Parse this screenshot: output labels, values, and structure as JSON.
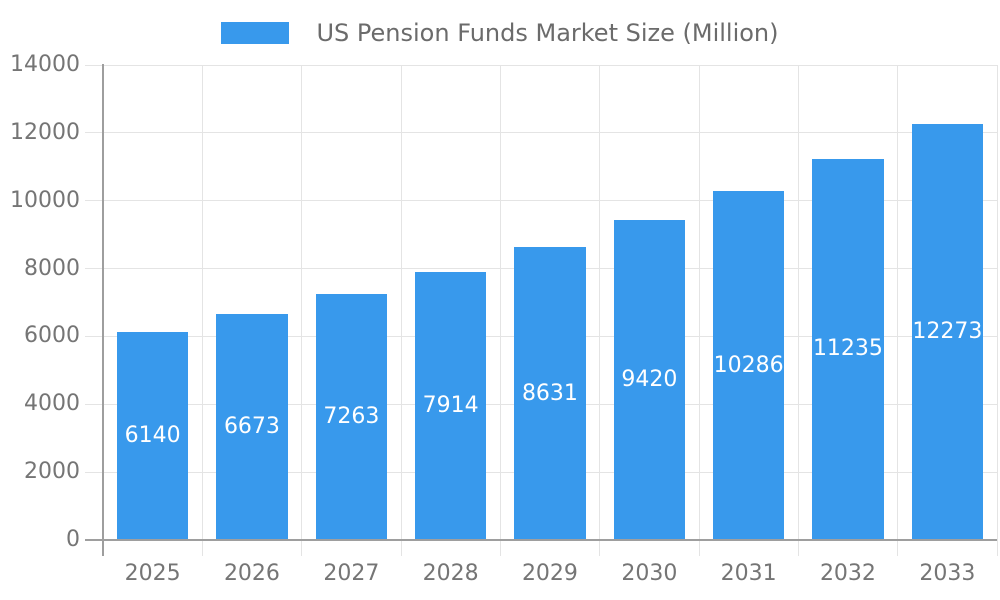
{
  "chart_data": {
    "type": "bar",
    "title": "US Pension Funds Market Size (Million)",
    "categories": [
      "2025",
      "2026",
      "2027",
      "2028",
      "2029",
      "2030",
      "2031",
      "2032",
      "2033"
    ],
    "series": [
      {
        "name": "US Pension Funds Market Size (Million)",
        "values": [
          6140,
          6673,
          7263,
          7914,
          8631,
          9420,
          10286,
          11235,
          12273
        ]
      }
    ],
    "values": [
      6140,
      6673,
      7263,
      7914,
      8631,
      9420,
      10286,
      11235,
      12273
    ],
    "bar_labels": [
      "6140",
      "6673",
      "7263",
      "7914",
      "8631",
      "9420",
      "10286",
      "11235",
      "12273"
    ],
    "xlabel": "",
    "ylabel": "",
    "ylim": [
      0,
      14000
    ],
    "yticks": [
      0,
      2000,
      4000,
      6000,
      8000,
      10000,
      12000,
      14000
    ],
    "grid": true,
    "legend_position": "top-center",
    "colors": {
      "bar": "#3899EC",
      "bar_label": "#FFFFFF",
      "grid": "#E4E4E4",
      "axis": "#9E9E9E",
      "tick_label": "#757575",
      "title": "#6B6B6B",
      "background": "#FFFFFF"
    }
  }
}
